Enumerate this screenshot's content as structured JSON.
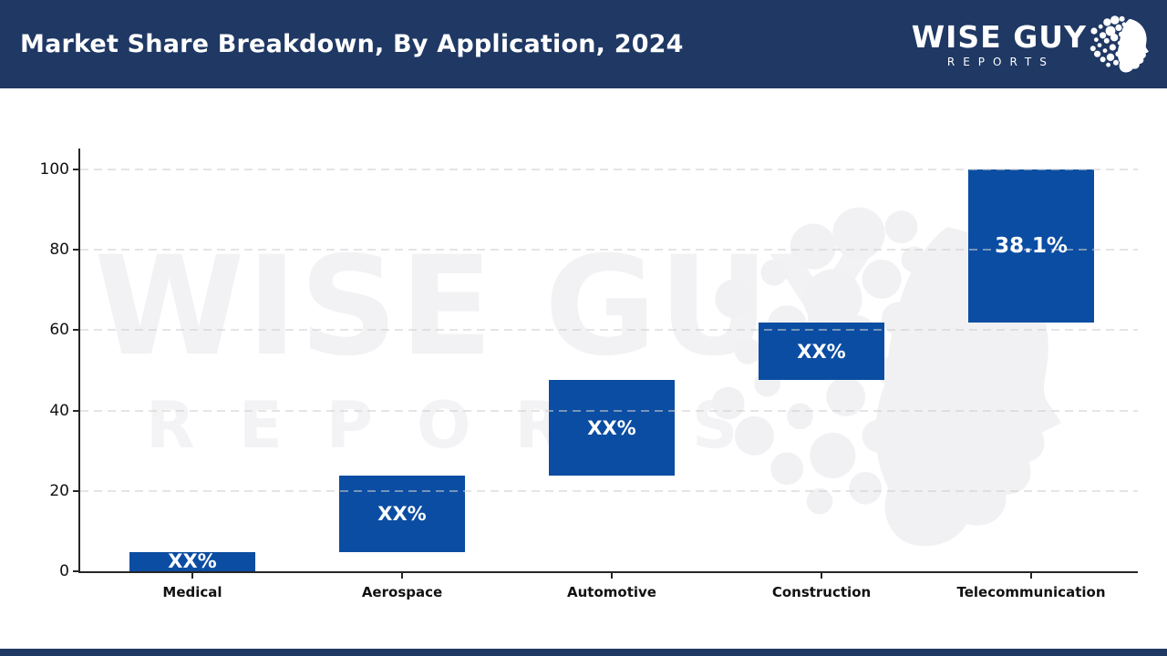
{
  "header": {
    "title": "Market Share Breakdown, By Application, 2024",
    "logo": {
      "line1": "WISE GUY",
      "line2": "REPORTS"
    }
  },
  "watermark": {
    "line1": "WISE GUY",
    "line2": "REPORTS"
  },
  "footer": {},
  "colors": {
    "header_bg": "#1f3864",
    "footer_bg": "#1f3864",
    "bar_fill": "#0b4da2",
    "bar_label": "#ffffff",
    "grid": "#d9d9d9",
    "axis": "#262626",
    "watermark": "#f2f2f4"
  },
  "chart_data": {
    "type": "bar",
    "variant": "waterfall",
    "title": "Market Share Breakdown, By Application, 2024",
    "xlabel": "",
    "ylabel": "",
    "categories": [
      "Medical",
      "Aerospace",
      "Automotive",
      "Construction",
      "Telecommunication"
    ],
    "segments": [
      {
        "category": "Medical",
        "start": 0,
        "end": 4.8,
        "size_pct": 4.8,
        "label": "XX%"
      },
      {
        "category": "Aerospace",
        "start": 4.8,
        "end": 23.8,
        "size_pct": 19.0,
        "label": "XX%"
      },
      {
        "category": "Automotive",
        "start": 23.8,
        "end": 47.6,
        "size_pct": 23.8,
        "label": "XX%"
      },
      {
        "category": "Construction",
        "start": 47.6,
        "end": 61.9,
        "size_pct": 14.3,
        "label": "XX%"
      },
      {
        "category": "Telecommunication",
        "start": 61.9,
        "end": 100,
        "size_pct": 38.1,
        "label": "38.1%"
      }
    ],
    "yticks": [
      0,
      20,
      40,
      60,
      80,
      100
    ],
    "ylim": [
      0,
      105
    ],
    "grid": "dashed horizontal, drawn over bars",
    "legend": null
  }
}
